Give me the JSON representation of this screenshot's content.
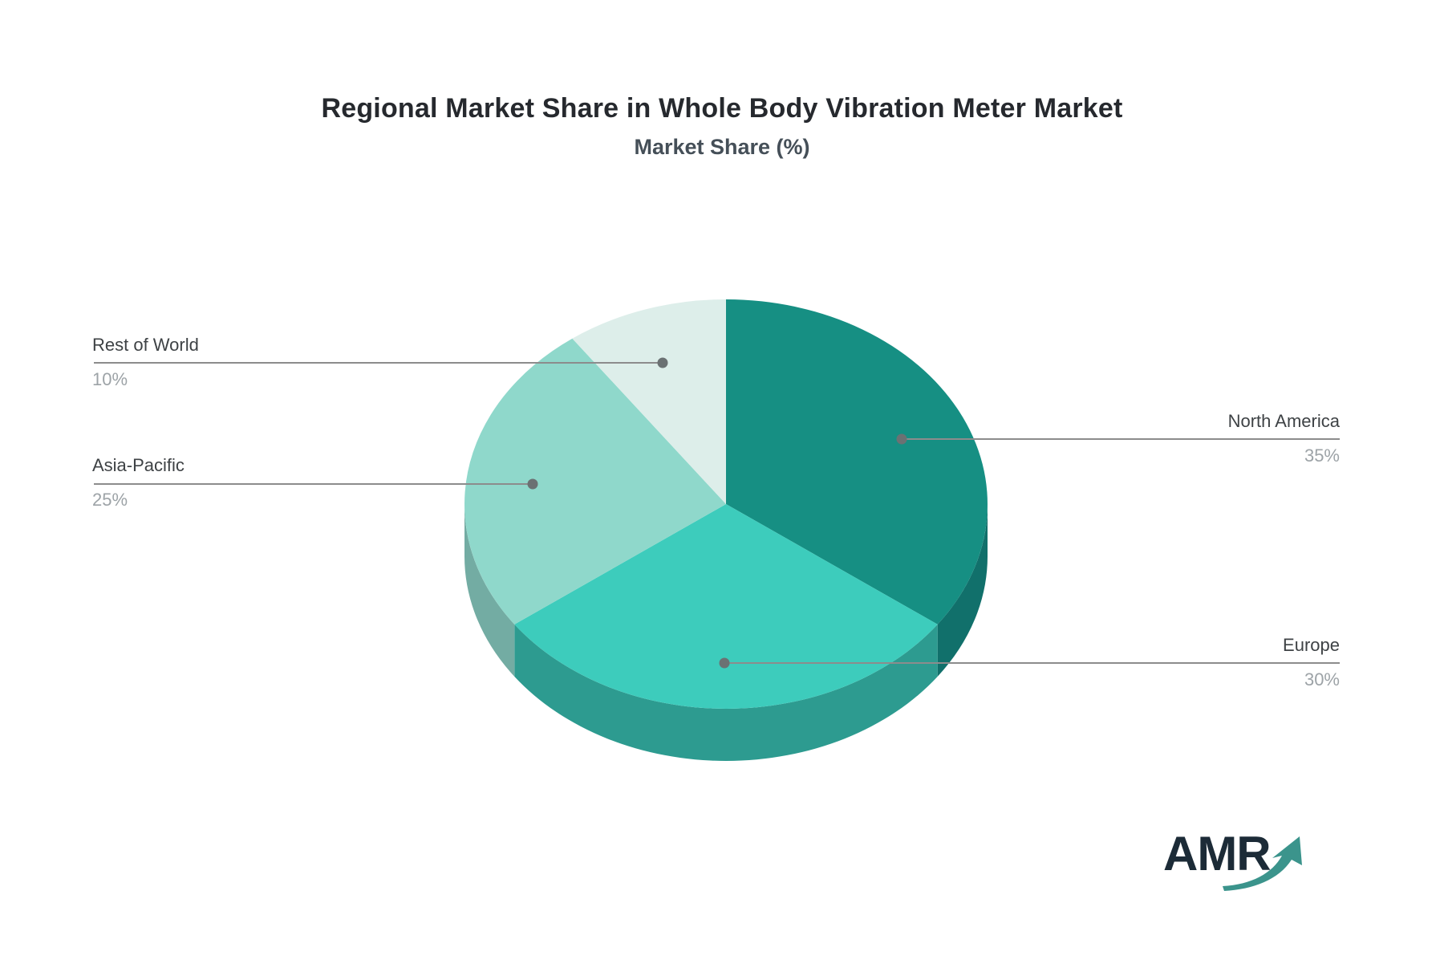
{
  "header": {
    "title": "Regional Market Share in Whole Body Vibration Meter Market",
    "subtitle": "Market Share (%)"
  },
  "chart_data": {
    "type": "pie",
    "title": "Regional Market Share in Whole Body Vibration Meter Market",
    "subtitle": "Market Share (%)",
    "unit": "%",
    "style": "3d-pie",
    "legend_position": "none",
    "start_angle_deg": 0,
    "direction": "clockwise",
    "categories": [
      "North America",
      "Europe",
      "Asia-Pacific",
      "Rest of World"
    ],
    "values": [
      35,
      30,
      25,
      10
    ],
    "slices": [
      {
        "label": "North America",
        "value": 35,
        "pct_label": "35%",
        "color": "#168f83",
        "side_color": "#11706b",
        "label_side": "right"
      },
      {
        "label": "Europe",
        "value": 30,
        "pct_label": "30%",
        "color": "#3dccbc",
        "side_color": "#2d9b90",
        "label_side": "right"
      },
      {
        "label": "Asia-Pacific",
        "value": 25,
        "pct_label": "25%",
        "color": "#8fd8cb",
        "side_color": "#73aca3",
        "label_side": "left"
      },
      {
        "label": "Rest of World",
        "value": 10,
        "pct_label": "10%",
        "color": "#ddeeea",
        "side_color": "#bcd9d5",
        "label_side": "left"
      }
    ],
    "leader_line_color": "#8c8c8c",
    "leader_dot_color": "#6b7173"
  },
  "logo": {
    "text": "AMR",
    "text_color": "#1c2b37",
    "arrow_color": "#3b948c"
  }
}
